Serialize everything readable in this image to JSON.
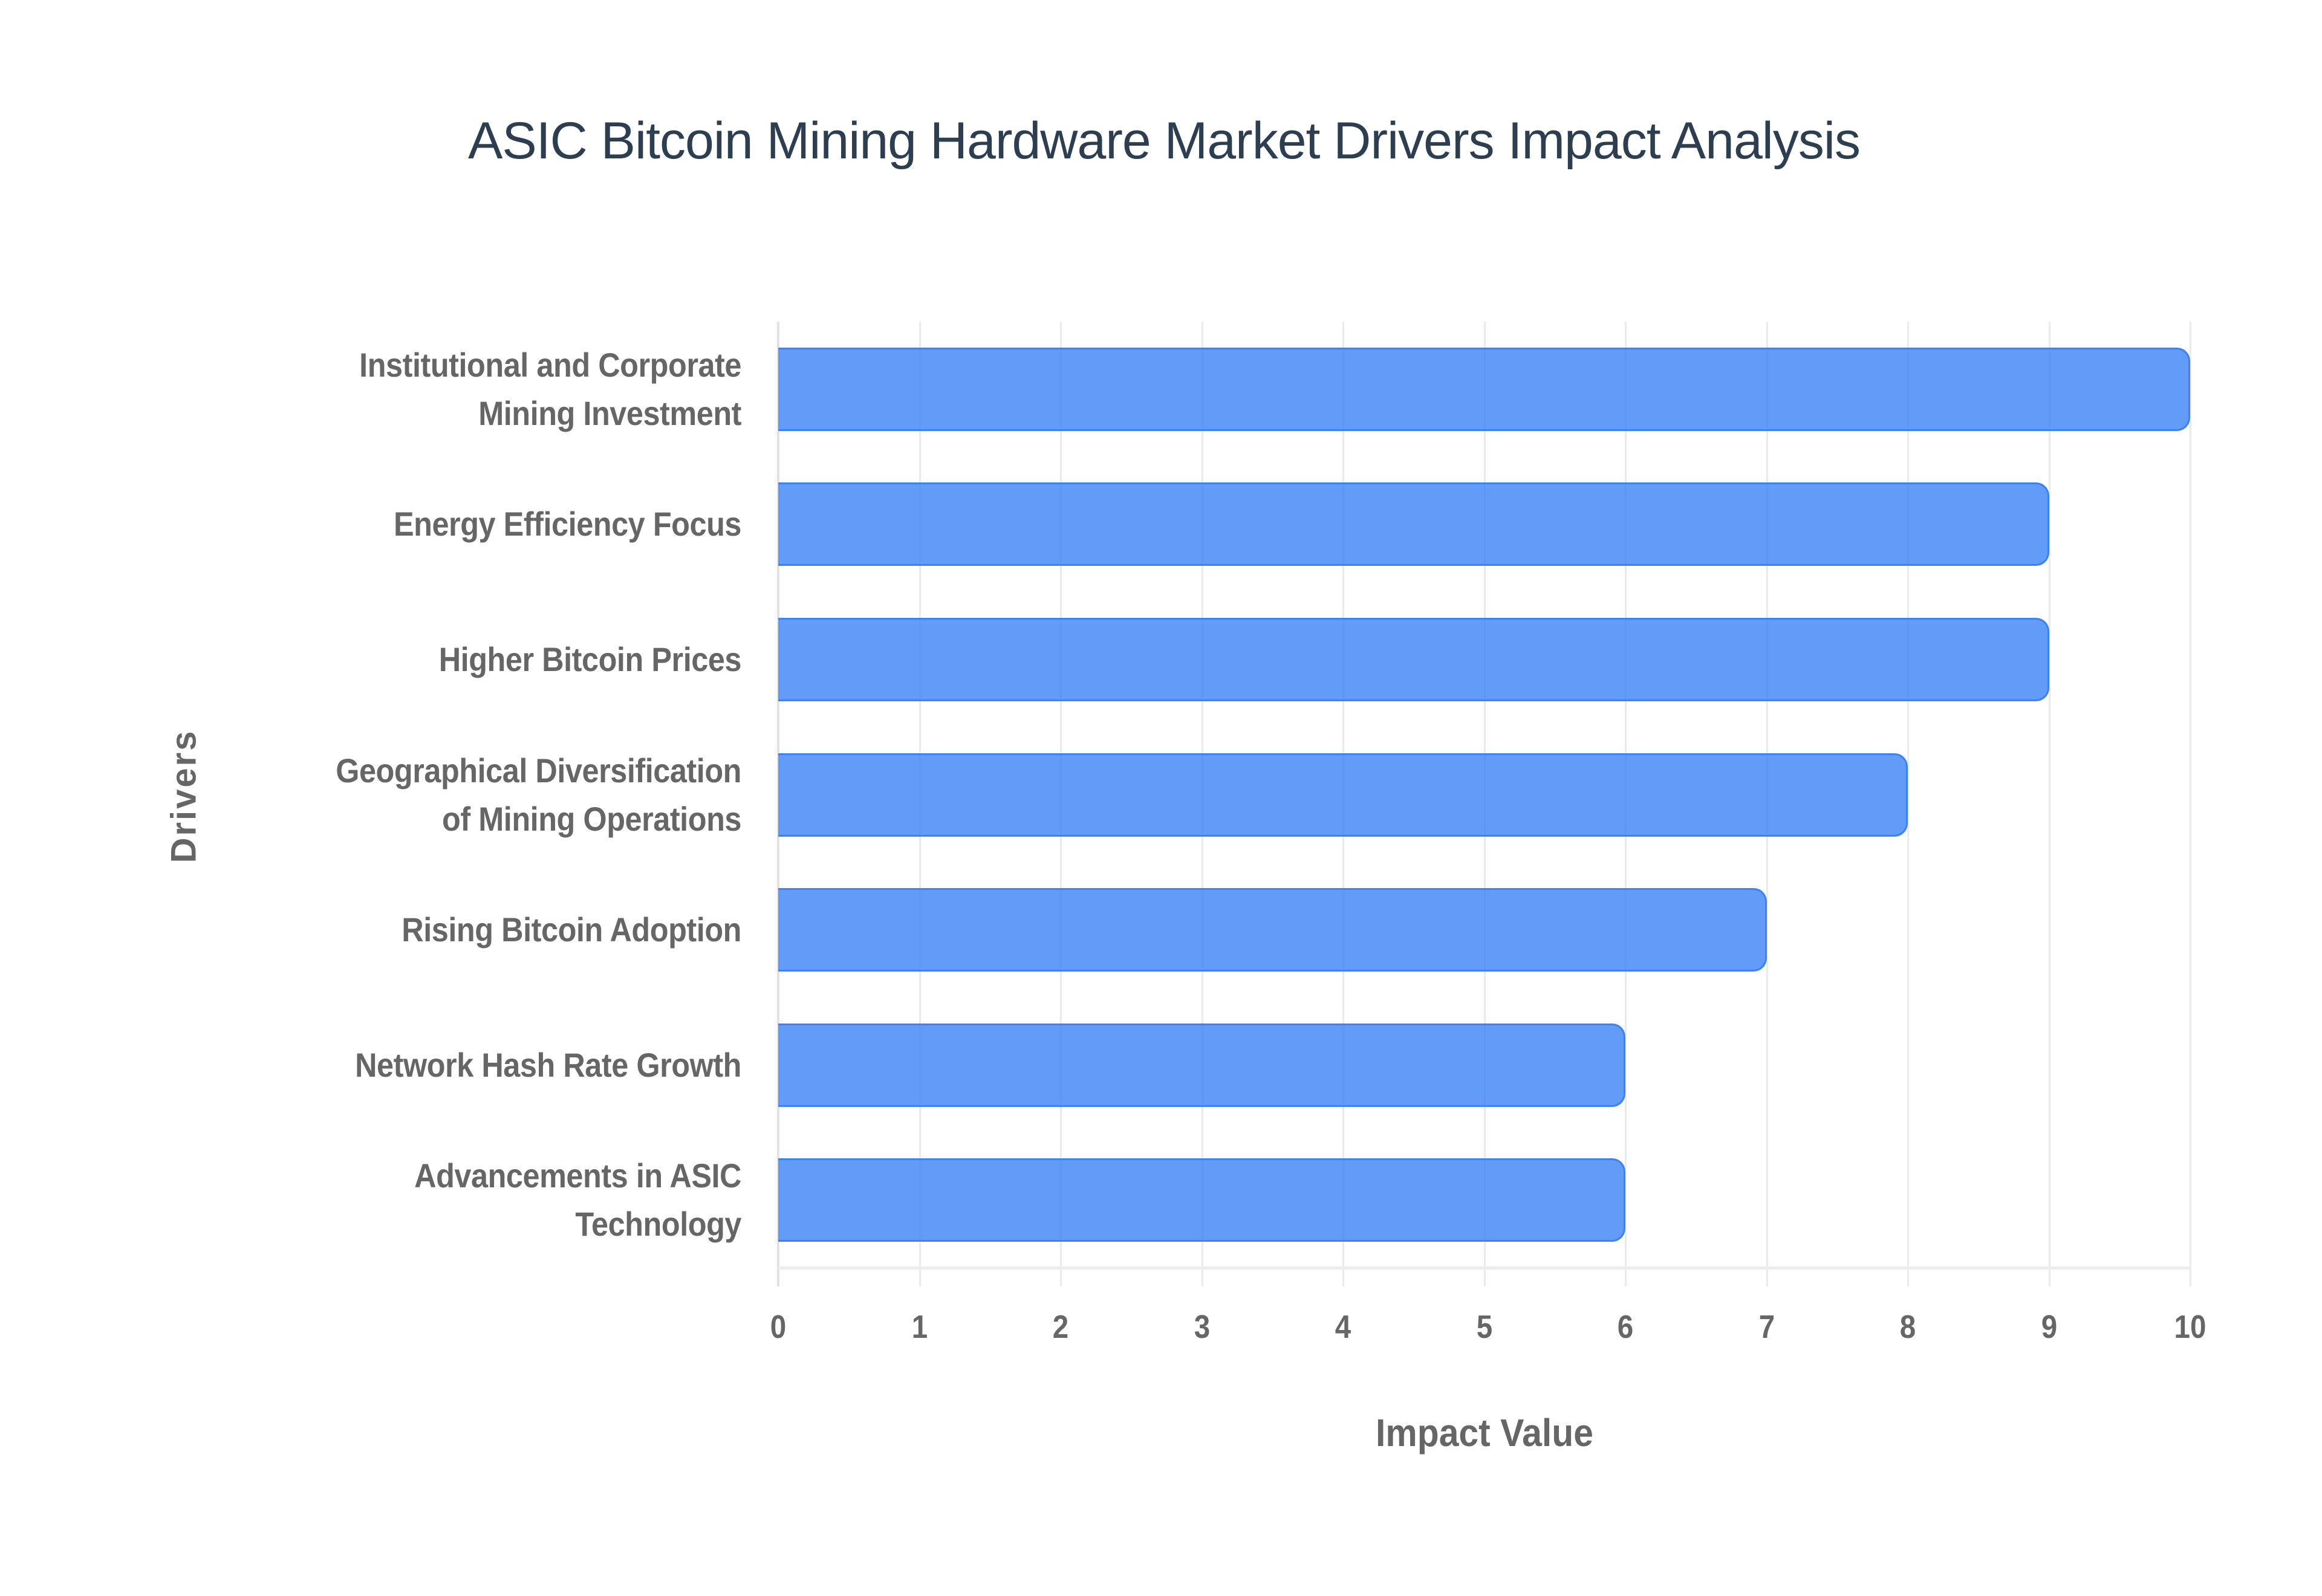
{
  "chart": {
    "title": "ASIC Bitcoin Mining Hardware Market Drivers Impact Analysis",
    "x_axis_title": "Impact Value",
    "y_axis_title": "Drivers",
    "bar_fill": "#6199f5",
    "bar_border": "#3b82f6",
    "title_color": "#2c3e50",
    "label_color": "#666666",
    "x_ticks": [
      "0",
      "1",
      "2",
      "3",
      "4",
      "5",
      "6",
      "7",
      "8",
      "9",
      "10"
    ],
    "drivers": [
      {
        "lines": [
          "Institutional and Corporate",
          "Mining Investment"
        ],
        "value": 10
      },
      {
        "lines": [
          "Energy Efficiency Focus"
        ],
        "value": 9
      },
      {
        "lines": [
          "Higher Bitcoin Prices"
        ],
        "value": 9
      },
      {
        "lines": [
          "Geographical Diversification",
          "of Mining Operations"
        ],
        "value": 8
      },
      {
        "lines": [
          "Rising Bitcoin Adoption"
        ],
        "value": 7
      },
      {
        "lines": [
          "Network Hash Rate Growth"
        ],
        "value": 6
      },
      {
        "lines": [
          "Advancements in ASIC",
          "Technology"
        ],
        "value": 6
      }
    ]
  },
  "chart_data": {
    "type": "bar",
    "orientation": "horizontal",
    "title": "ASIC Bitcoin Mining Hardware Market Drivers Impact Analysis",
    "xlabel": "Impact Value",
    "ylabel": "Drivers",
    "categories": [
      "Institutional and Corporate Mining Investment",
      "Energy Efficiency Focus",
      "Higher Bitcoin Prices",
      "Geographical Diversification of Mining Operations",
      "Rising Bitcoin Adoption",
      "Network Hash Rate Growth",
      "Advancements in ASIC Technology"
    ],
    "values": [
      10,
      9,
      9,
      8,
      7,
      6,
      6
    ],
    "xlim": [
      0,
      10
    ],
    "x_ticks": [
      0,
      1,
      2,
      3,
      4,
      5,
      6,
      7,
      8,
      9,
      10
    ],
    "grid": {
      "vertical": true,
      "horizontal": false
    },
    "legend": null,
    "colors": {
      "bar": "#6199f5",
      "bar_border": "#3b82f6"
    }
  }
}
